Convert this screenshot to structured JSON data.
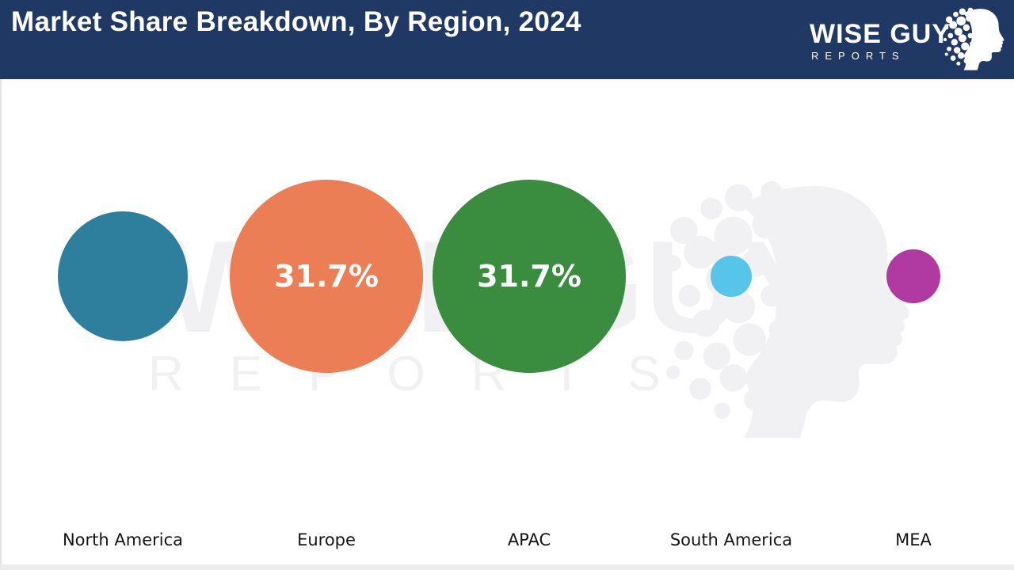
{
  "header": {
    "title": "Market Share Breakdown, By Region, 2024",
    "bg_color": "#1f3864",
    "logo": {
      "line1": "WISE GUY",
      "line2": "REPORTS"
    }
  },
  "watermark": {
    "line1": "WISE GUY",
    "line2": "REPORTS"
  },
  "chart_data": {
    "type": "bubble",
    "title": "Market Share Breakdown, By Region, 2024",
    "categories": [
      "North America",
      "Europe",
      "APAC",
      "South America",
      "MEA"
    ],
    "series": [
      {
        "name": "Market Share",
        "points": [
          {
            "region": "North America",
            "label": "",
            "color": "#2e7f9d",
            "radius_px": 82
          },
          {
            "region": "Europe",
            "label": "31.7%",
            "value": 31.7,
            "color": "#ec7e55",
            "radius_px": 122
          },
          {
            "region": "APAC",
            "label": "31.7%",
            "value": 31.7,
            "color": "#3a8c3e",
            "radius_px": 122
          },
          {
            "region": "South America",
            "label": "",
            "color": "#57c5ea",
            "radius_px": 26
          },
          {
            "region": "MEA",
            "label": "",
            "color": "#b13aa2",
            "radius_px": 34
          }
        ]
      }
    ],
    "value_label_color": "#ffffff",
    "legend_position": "none",
    "grid": false
  }
}
